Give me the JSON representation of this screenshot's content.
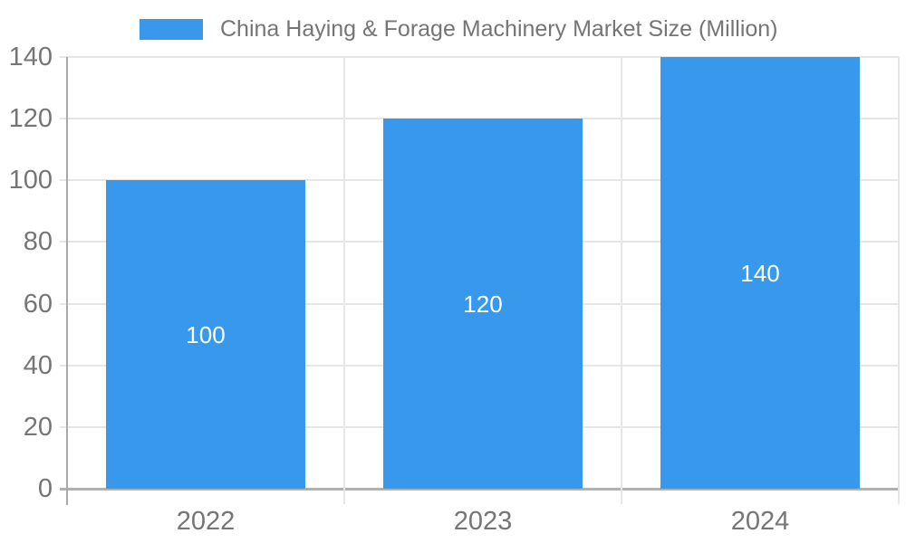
{
  "chart_data": {
    "type": "bar",
    "title": "China Haying & Forage Machinery Market Size (Million)",
    "categories": [
      "2022",
      "2023",
      "2024"
    ],
    "values": [
      100,
      120,
      140
    ],
    "data_labels": [
      "100",
      "120",
      "140"
    ],
    "xlabel": "",
    "ylabel": "",
    "ylim": [
      0,
      140
    ],
    "yticks": [
      0,
      20,
      40,
      60,
      80,
      100,
      120,
      140
    ],
    "grid": true,
    "legend_position": "top-center",
    "colors": {
      "bar": "#3899ec",
      "axis_label": "#757575",
      "gridline": "#e6e6e6",
      "baseline": "#b1b1b1",
      "axis_line": "#a9a9a9",
      "data_label": "#ffffff"
    }
  }
}
